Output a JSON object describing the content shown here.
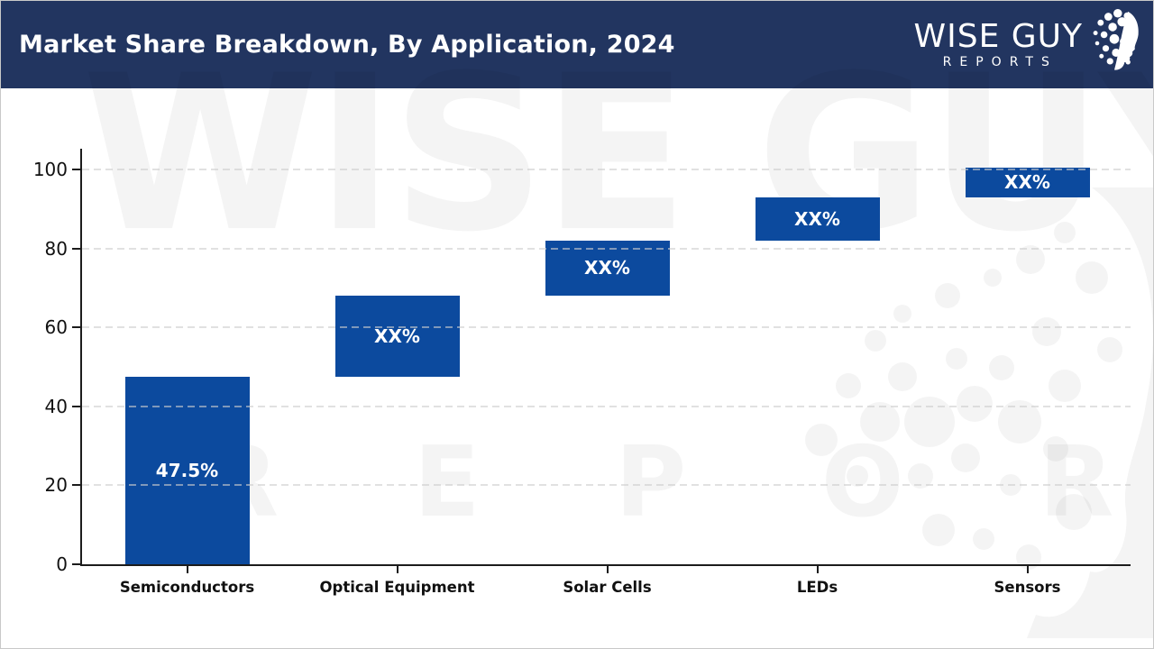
{
  "header": {
    "title": "Market Share Breakdown, By Application, 2024",
    "logo_primary": "WISE GUY",
    "logo_secondary": "REPORTS",
    "header_bg": "#223560"
  },
  "watermark": {
    "line1": "WISE GUY",
    "line2": "R E P O R T S"
  },
  "chart_data": {
    "type": "bar",
    "subtype": "waterfall",
    "title": "Market Share Breakdown, By Application, 2024",
    "xlabel": "",
    "ylabel": "",
    "categories": [
      "Semiconductors",
      "Optical Equipment",
      "Solar Cells",
      "LEDs",
      "Sensors"
    ],
    "segments": [
      {
        "category": "Semiconductors",
        "start": 0,
        "end": 47.5,
        "label": "47.5%"
      },
      {
        "category": "Optical Equipment",
        "start": 47.5,
        "end": 68,
        "label": "XX%"
      },
      {
        "category": "Solar Cells",
        "start": 68,
        "end": 82,
        "label": "XX%"
      },
      {
        "category": "LEDs",
        "start": 82,
        "end": 93,
        "label": "XX%"
      },
      {
        "category": "Sensors",
        "start": 93,
        "end": 100.5,
        "label": "XX%"
      }
    ],
    "yticks": [
      0,
      20,
      40,
      60,
      80,
      100
    ],
    "ylim": [
      0,
      100
    ],
    "grid": true,
    "grid_style": "dashed",
    "legend": false,
    "bar_color": "#0c4a9e",
    "bar_label_color": "#ffffff",
    "axis_color": "#1c1c1c",
    "grid_color": "#d9d9d9"
  }
}
